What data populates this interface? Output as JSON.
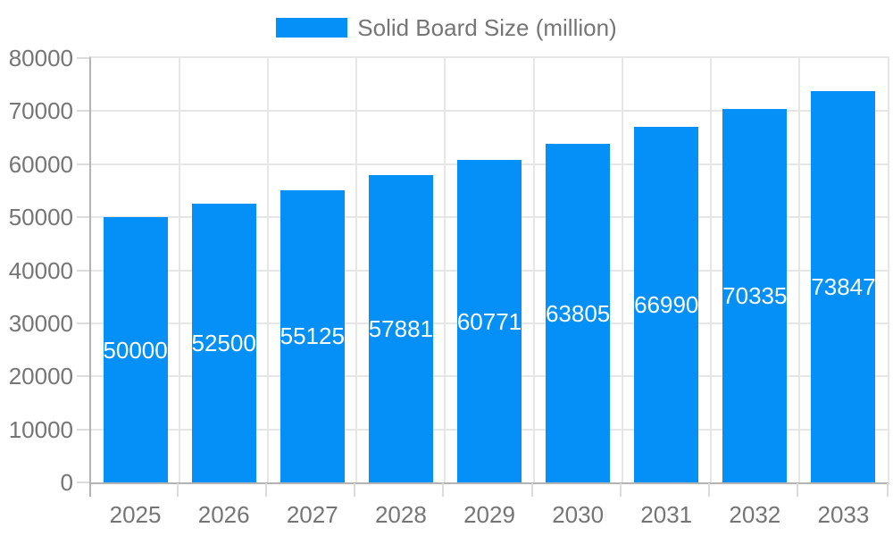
{
  "chart_data": {
    "type": "bar",
    "title": "",
    "legend": {
      "position": "top",
      "label": "Solid Board Size (million)"
    },
    "categories": [
      "2025",
      "2026",
      "2027",
      "2028",
      "2029",
      "2030",
      "2031",
      "2032",
      "2033"
    ],
    "series": [
      {
        "name": "Solid Board Size (million)",
        "values": [
          50000,
          52500,
          55125,
          57881,
          60771,
          63805,
          66990,
          70335,
          73847
        ]
      }
    ],
    "data_labels_shown": true,
    "xlabel": "",
    "ylabel": "",
    "ylim": [
      0,
      80000
    ],
    "ytick_step": 10000,
    "ytick_labels": [
      "0",
      "10000",
      "20000",
      "30000",
      "40000",
      "50000",
      "60000",
      "70000",
      "80000"
    ],
    "grid": true,
    "colors": {
      "bar": "#0590f8",
      "bar_value_text": "#ffffff",
      "axis_text": "#757575",
      "axis_line": "#b3b3b3",
      "gridline": "#e6e6e6",
      "background": "#ffffff"
    }
  }
}
